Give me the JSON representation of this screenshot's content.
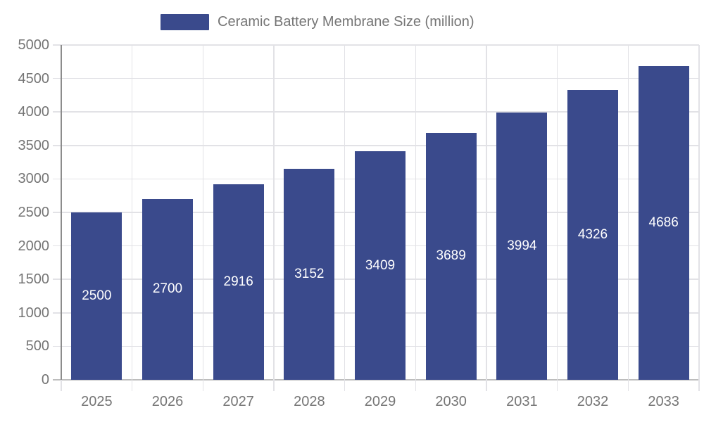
{
  "legend": {
    "label": "Ceramic Battery Membrane Size (million)",
    "swatch_color": "#3a4a8c"
  },
  "chart_data": {
    "type": "bar",
    "title": "Ceramic Battery Membrane Size (million)",
    "categories": [
      "2025",
      "2026",
      "2027",
      "2028",
      "2029",
      "2030",
      "2031",
      "2032",
      "2033"
    ],
    "values": [
      2500,
      2700,
      2916,
      3152,
      3409,
      3689,
      3994,
      4326,
      4686
    ],
    "value_labels": [
      "2500",
      "2700",
      "2916",
      "3152",
      "3409",
      "3689",
      "3994",
      "4326",
      "4686"
    ],
    "xlabel": "",
    "ylabel": "",
    "ylim": [
      0,
      5000
    ],
    "yticks": [
      0,
      500,
      1000,
      1500,
      2000,
      2500,
      3000,
      3500,
      4000,
      4500,
      5000
    ],
    "grid": true,
    "legend_position": "top",
    "colors": {
      "bar": "#3a4a8c",
      "value_label": "#ffffff",
      "axis_text": "#757575",
      "gridline": "#e2e2e6",
      "zero_line": "#bdbdbd",
      "axis_line": "#8c8c8c"
    }
  }
}
